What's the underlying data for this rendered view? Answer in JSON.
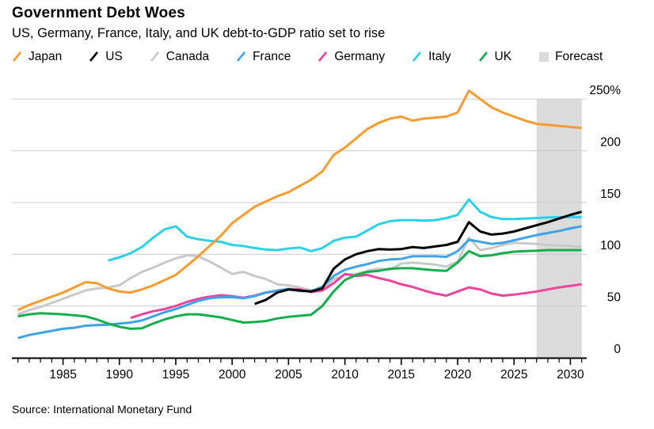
{
  "header": {
    "title": "Government Debt Woes",
    "subtitle": "US, Germany, France, Italy, and UK debt-to-GDP ratio set to rise"
  },
  "footer": {
    "source": "Source: International Monetary Fund"
  },
  "chart_data": {
    "type": "line",
    "title": "Government Debt Woes",
    "subtitle": "US, Germany, France, Italy, and UK debt-to-GDP ratio set to rise",
    "legend_position": "top",
    "grid": true,
    "x_axis": {
      "range": [
        1980.5,
        2031.5
      ],
      "ticks_major": [
        1985,
        1990,
        1995,
        2000,
        2005,
        2010,
        2015,
        2020,
        2025,
        2030
      ],
      "minor_tick_step_years": 1,
      "first_minor_tick_year": 1981,
      "last_minor_tick_year": 2031
    },
    "y_axis": {
      "range": [
        0,
        265
      ],
      "ticks": [
        {
          "value": 0,
          "label": "0"
        },
        {
          "value": 50,
          "label": "50"
        },
        {
          "value": 100,
          "label": "100"
        },
        {
          "value": 150,
          "label": "150"
        },
        {
          "value": 200,
          "label": "200"
        },
        {
          "value": 250,
          "label": "250%"
        }
      ]
    },
    "forecast_band": {
      "label": "Forecast",
      "start_year": 2027,
      "end_year": 2031,
      "color": "#DBDBDB"
    },
    "colors": {
      "gridline": "#CCCCCC",
      "axis": "#000000",
      "forecast_band": "#DBDBDB"
    },
    "series": [
      {
        "name": "Canada",
        "color": "#C9C9C9",
        "start_year": 1981,
        "values": [
          42,
          46,
          49,
          53,
          57,
          61,
          65,
          67,
          68,
          70,
          77,
          83,
          87,
          92,
          96,
          99,
          98,
          93,
          87,
          81,
          83,
          79,
          76,
          71,
          70,
          68,
          65,
          66,
          76,
          80,
          81,
          84,
          86,
          85,
          91,
          92,
          91,
          90,
          88,
          93,
          116,
          104,
          106,
          109,
          111,
          110.5,
          110,
          109,
          108.5,
          108,
          107
        ]
      },
      {
        "name": "Germany",
        "color": "#F0439C",
        "start_year": 1991,
        "values": [
          38.5,
          42,
          45,
          47,
          50,
          54,
          57,
          59,
          60.5,
          59.5,
          58,
          60,
          63,
          64.5,
          66.5,
          66,
          63.5,
          65,
          72,
          81,
          79,
          80,
          77,
          74.5,
          71,
          68.5,
          65,
          62,
          60,
          64,
          68,
          66,
          62,
          60,
          61,
          62.5,
          64,
          66,
          68,
          69.5,
          71
        ]
      },
      {
        "name": "France",
        "color": "#3FA3E8",
        "start_year": 1981,
        "values": [
          19,
          22,
          24,
          26,
          28,
          29,
          31,
          31.5,
          32,
          33,
          34,
          36,
          40,
          44,
          47,
          51,
          55,
          57.5,
          58.5,
          58.5,
          57.5,
          59.5,
          63,
          65,
          66.5,
          64.5,
          64.5,
          68.5,
          79,
          85,
          88,
          90.5,
          93.5,
          95,
          95.5,
          98,
          98,
          98,
          97.5,
          103,
          114,
          112,
          110,
          111,
          113.5,
          116,
          118.5,
          120.5,
          122.5,
          125,
          127
        ]
      },
      {
        "name": "UK",
        "color": "#12AF4B",
        "start_year": 1981,
        "values": [
          40,
          42,
          43,
          42.5,
          42,
          41,
          40,
          37,
          33,
          30,
          28,
          28.5,
          33,
          37,
          40,
          42,
          42,
          40.5,
          39,
          36.5,
          34,
          34.5,
          35.5,
          38,
          39.5,
          40.5,
          41.5,
          50,
          64,
          75,
          80,
          83,
          84,
          86,
          86.5,
          86.5,
          85.5,
          84.5,
          84,
          92,
          103,
          98,
          99,
          101,
          102.5,
          103,
          103.5,
          104,
          104,
          104,
          104
        ]
      },
      {
        "name": "Italy",
        "color": "#2BD2E6",
        "start_year": 1989,
        "values": [
          94,
          97,
          101,
          107,
          116,
          124,
          127,
          117,
          114.5,
          113,
          112,
          109,
          108,
          106,
          104.5,
          104,
          105.5,
          106.5,
          103,
          106,
          113,
          116,
          117,
          123,
          129,
          132,
          133,
          133,
          132.5,
          133,
          135,
          138,
          153,
          141,
          136,
          134,
          134,
          134.5,
          135,
          135.5,
          136,
          136,
          136
        ]
      },
      {
        "name": "US",
        "color": "#000000",
        "start_year": 2002,
        "values": [
          52,
          56,
          63,
          66,
          65,
          64,
          67,
          86,
          95,
          100,
          103,
          105,
          104.5,
          105,
          107,
          106,
          107.5,
          109,
          112,
          131,
          122,
          119,
          120,
          122,
          125,
          128,
          131,
          134.5,
          138,
          141
        ]
      },
      {
        "name": "Japan",
        "color": "#F89C30",
        "start_year": 1981,
        "values": [
          46,
          51,
          55,
          59,
          63,
          68,
          73,
          72,
          67,
          64,
          63,
          66,
          70,
          75,
          80,
          89,
          98,
          108,
          118,
          130,
          138,
          146,
          151,
          156,
          160,
          166,
          172,
          180,
          196,
          203,
          212,
          221,
          227,
          231,
          233,
          229,
          231,
          232,
          233,
          237,
          258,
          250,
          242,
          237,
          233,
          229,
          226,
          225,
          224,
          223,
          222
        ]
      }
    ],
    "legend_order": [
      "Japan",
      "US",
      "Canada",
      "France",
      "Germany",
      "Italy",
      "UK",
      "Forecast"
    ]
  }
}
